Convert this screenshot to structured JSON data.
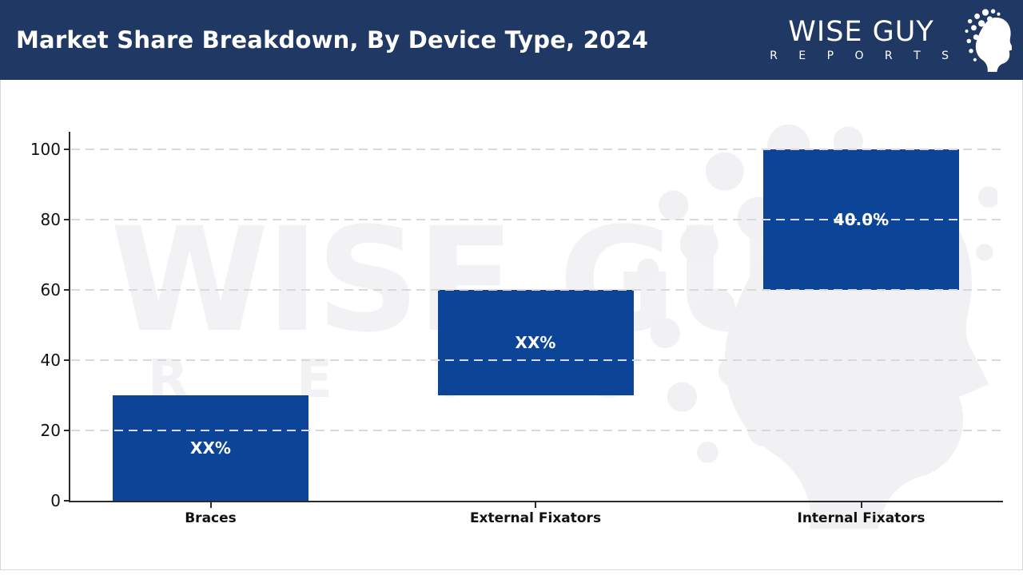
{
  "header": {
    "title": "Market Share Breakdown, By Device Type, 2024",
    "bg_color": "#1F3864",
    "logo": {
      "line1": "WISE GUY",
      "line2": "R E P O R T S"
    }
  },
  "watermark": {
    "line1": "WISE GUY",
    "line2": "R E P O R T S"
  },
  "chart_data": {
    "type": "bar",
    "variant": "floating-segment (waterfall-style market share)",
    "title": "Market Share Breakdown, By Device Type, 2024",
    "categories": [
      "Braces",
      "External Fixators",
      "Internal Fixators"
    ],
    "bars": [
      {
        "category": "Braces",
        "start": 0,
        "end": 30,
        "label": "XX%"
      },
      {
        "category": "External Fixators",
        "start": 30,
        "end": 60,
        "label": "XX%"
      },
      {
        "category": "Internal Fixators",
        "start": 60,
        "end": 100,
        "label": "40.0%"
      }
    ],
    "yticks": [
      0,
      20,
      40,
      60,
      80,
      100
    ],
    "ylim": [
      0,
      105
    ],
    "xlabel": "",
    "ylabel": "",
    "grid": "horizontal-dashed, drawn over bars",
    "legend": "none",
    "bar_color": "#0C4598",
    "bar_label_color": "#ffffff",
    "axis_color": "#2b2b2b",
    "grid_color": "#d9d9d9",
    "tick_label_color": "#111111"
  }
}
